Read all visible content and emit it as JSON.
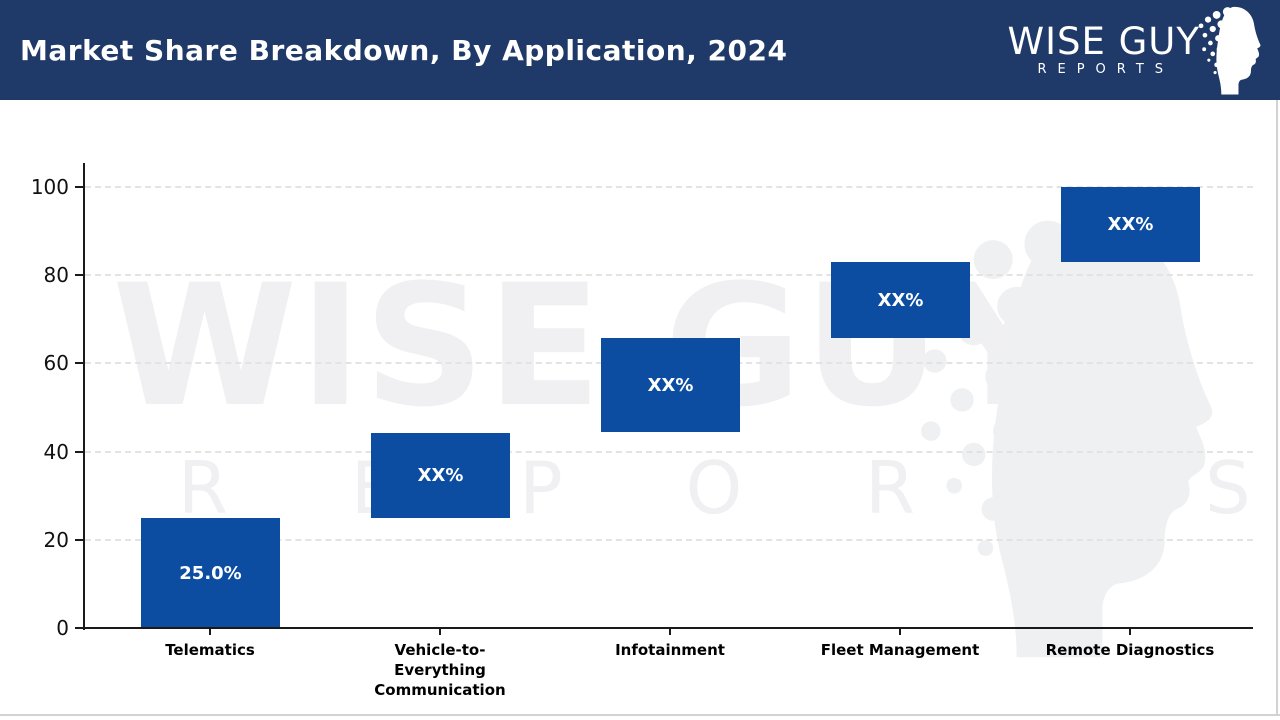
{
  "header": {
    "title": "Market Share Breakdown, By Application, 2024",
    "bg_color": "#1F3A68",
    "logo": {
      "line1": "WISE GUY",
      "line2": "REPORTS"
    }
  },
  "watermark": {
    "line1": "WISE GUY",
    "line2": "R E P O R T S"
  },
  "chart_data": {
    "type": "bar",
    "subtype": "waterfall",
    "title": "Market Share Breakdown, By Application, 2024",
    "categories": [
      "Telematics",
      "Vehicle-to-\nEverything\nCommunication",
      "Infotainment",
      "Fleet Management",
      "Remote Diagnostics"
    ],
    "segments": [
      {
        "category": "Telematics",
        "start": 0,
        "end": 25,
        "label": "25.0%"
      },
      {
        "category": "Vehicle-to-Everything Communication",
        "start": 25,
        "end": 44.3,
        "label": "XX%"
      },
      {
        "category": "Infotainment",
        "start": 44.3,
        "end": 65.7,
        "label": "XX%"
      },
      {
        "category": "Fleet Management",
        "start": 65.7,
        "end": 83,
        "label": "XX%"
      },
      {
        "category": "Remote Diagnostics",
        "start": 83,
        "end": 100,
        "label": "XX%"
      }
    ],
    "ylim": [
      0,
      100
    ],
    "yticks": [
      0,
      20,
      40,
      60,
      80,
      100
    ],
    "grid": "horizontal-dashed",
    "legend": "none",
    "bar_color": "#0C4DA2",
    "bar_label_color": "#FFFFFF",
    "watermark_color": "#f0f0f2"
  }
}
